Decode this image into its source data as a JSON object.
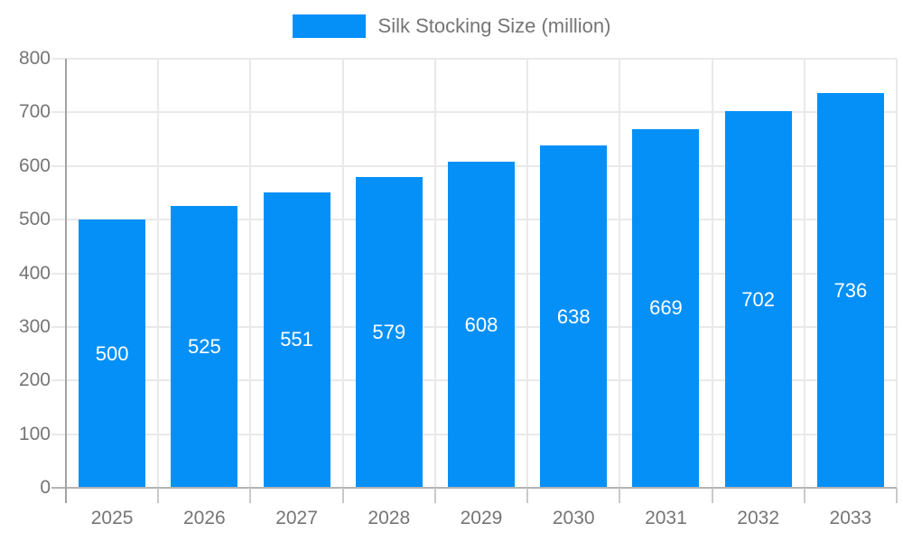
{
  "chart_data": {
    "type": "bar",
    "title": "",
    "legend": {
      "label": "Silk Stocking Size (million)",
      "position": "top"
    },
    "categories": [
      "2025",
      "2026",
      "2027",
      "2028",
      "2029",
      "2030",
      "2031",
      "2032",
      "2033"
    ],
    "series": [
      {
        "name": "Silk Stocking Size (million)",
        "values": [
          500,
          525,
          551,
          579,
          608,
          638,
          669,
          702,
          736
        ]
      }
    ],
    "xlabel": "",
    "ylabel": "",
    "ylim": [
      0,
      800
    ],
    "yticks": [
      0,
      100,
      200,
      300,
      400,
      500,
      600,
      700,
      800
    ],
    "grid": true,
    "value_labels": "inside-center-white",
    "colors": {
      "bar": "#0590f8",
      "value_label": "#ffffff",
      "axis_text": "#757575",
      "gridline": "#e9e9e9",
      "axis_line": "#a3a3a3",
      "baseline": "#b3b3b3",
      "tick": "#c9c9c9",
      "background": "#ffffff"
    }
  }
}
